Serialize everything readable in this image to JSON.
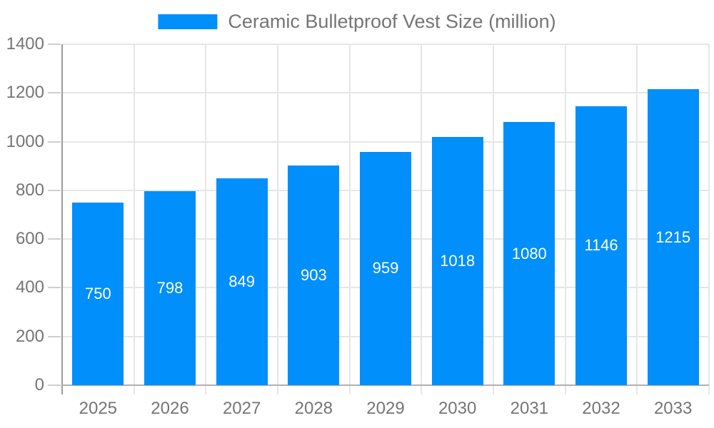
{
  "legend": {
    "label": "Ceramic Bulletproof Vest Size (million)"
  },
  "chart_data": {
    "type": "bar",
    "title": "Ceramic Bulletproof Vest Size (million)",
    "categories": [
      "2025",
      "2026",
      "2027",
      "2028",
      "2029",
      "2030",
      "2031",
      "2032",
      "2033"
    ],
    "values": [
      750,
      798,
      849,
      903,
      959,
      1018,
      1080,
      1146,
      1215
    ],
    "series": [
      {
        "name": "Ceramic Bulletproof Vest Size (million)",
        "values": [
          750,
          798,
          849,
          903,
          959,
          1018,
          1080,
          1146,
          1215
        ]
      }
    ],
    "xlabel": "",
    "ylabel": "",
    "ylim": [
      0,
      1400
    ],
    "ytick_step": 200,
    "ytick_labels": [
      "0",
      "200",
      "400",
      "600",
      "800",
      "1000",
      "1200",
      "1400"
    ],
    "grid": true,
    "legend_position": "top",
    "value_labels": "inside-center",
    "colors": {
      "bar": "#008ffb",
      "bar_value_text": "#ffffff",
      "axis_text": "#757575",
      "gridline": "#e6e6e6",
      "tick": "#cfcfcf",
      "y_axis_line": "#9b9b9b",
      "x_axis_line": "#b0b0b0",
      "background": "#ffffff"
    }
  }
}
